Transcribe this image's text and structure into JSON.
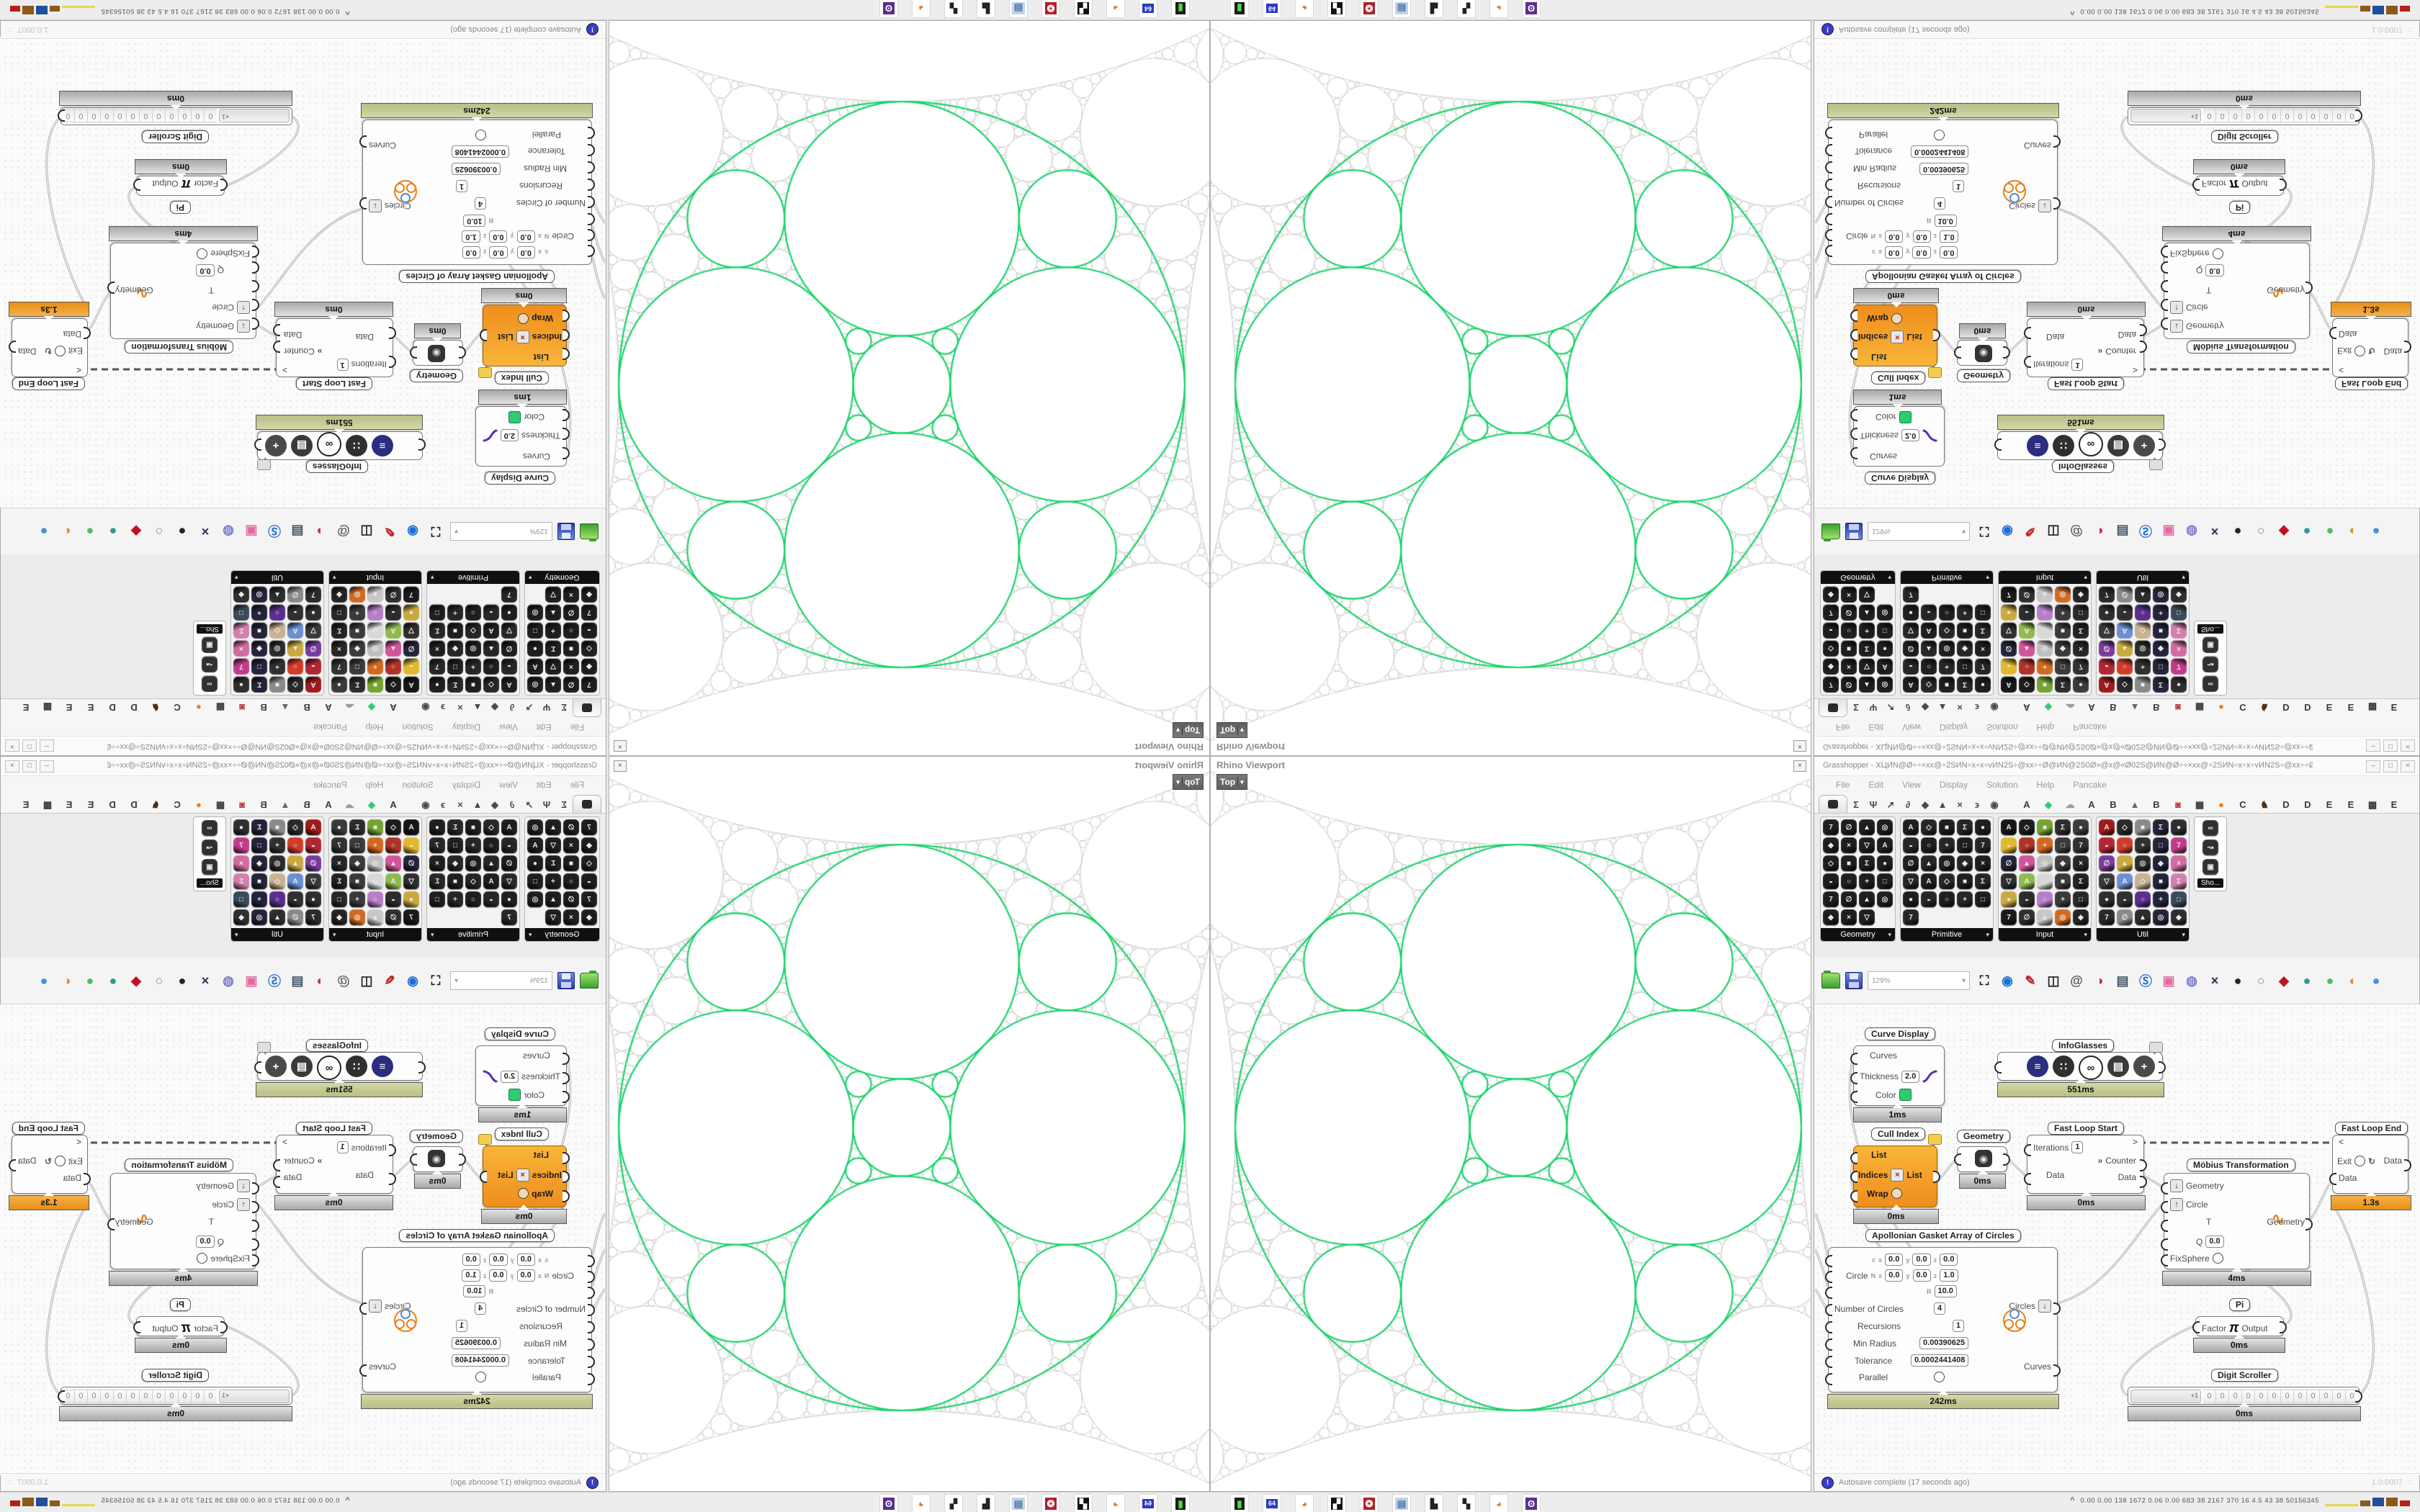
{
  "viewport": {
    "title": "Rhino Viewport",
    "view_tab": "Top",
    "view_tab_caret": "▾",
    "close": "×"
  },
  "gh": {
    "title": "Grasshopper - ХЦИN@Ø÷÷×xx@÷2SИN÷x÷x÷vИN2S÷@xx÷÷Ø@ИN@2S0Ø»@x@«Ø02S@ИN@Ø÷÷×xx@÷2SИN÷x÷x÷vИN2S÷@xx÷÷Ø@ИN*",
    "buttons": {
      "min": "–",
      "max": "□",
      "close": "×"
    },
    "menu": [
      "File",
      "Edit",
      "View",
      "Display",
      "Solution",
      "Help",
      "Pancake"
    ],
    "main_tabs": [
      "Σ",
      "Ψ",
      "↗",
      "∂",
      "◆",
      "▲",
      "×",
      "϶",
      "◉"
    ],
    "plugin_tabs": [
      {
        "label": "A",
        "color": "#3a3a3a"
      },
      {
        "label": "◆",
        "color": "#2ecc71"
      },
      {
        "label": "☁",
        "color": "#9a9a9a"
      },
      {
        "label": "A",
        "color": "#3a3a3a"
      },
      {
        "label": "B",
        "color": "#3a3a3a"
      },
      {
        "label": "▲",
        "color": "#666666"
      },
      {
        "label": "B",
        "color": "#3a3a3a"
      },
      {
        "label": "◙",
        "color": "#b03333"
      },
      {
        "label": "▦",
        "color": "#3a3a3a"
      },
      {
        "label": "●",
        "color": "#e8821e"
      },
      {
        "label": "C",
        "color": "#3a3a3a"
      },
      {
        "label": "♞",
        "color": "#4a2f1d"
      },
      {
        "label": "D",
        "color": "#3a3a3a"
      },
      {
        "label": "D",
        "color": "#3a3a3a"
      },
      {
        "label": "E",
        "color": "#3a3a3a"
      },
      {
        "label": "E",
        "color": "#3a3a3a"
      },
      {
        "label": "▩",
        "color": "#3a3a3a"
      },
      {
        "label": "E",
        "color": "#3a3a3a"
      }
    ],
    "palette_panels": [
      {
        "label": "Geometry",
        "caret": "▾",
        "cols": 4,
        "count": 23,
        "colors": [
          "#1e1e1e"
        ]
      },
      {
        "label": "Primitive",
        "caret": "▾",
        "cols": 5,
        "count": 26,
        "colors": [
          "#1e1e1e",
          "#262626"
        ]
      },
      {
        "label": "Input",
        "caret": "▾",
        "cols": 5,
        "count": 30,
        "colors": [
          "#161616",
          "#1d1d1d",
          "#74a32e",
          "#2c2c2c",
          "#3a3a3a",
          "#e0b92e",
          "#b03226",
          "#d2691e",
          "#3a3a3a",
          "#303030",
          "#23233a",
          "#d2549a",
          "#bfbfbf",
          "#3a3a3a",
          "#262626",
          "#2f2f2f",
          "#8fba4e",
          "#d8d8d8",
          "#3a3a3a",
          "#222222",
          "#caa93e",
          "#2c2c2c",
          "#b87fc9",
          "#3a3a3a",
          "#282828",
          "#1a1a1a",
          "#2e2e2e",
          "#c8c8c8",
          "#d2691e",
          "#242424"
        ]
      },
      {
        "label": "Util",
        "caret": "▾",
        "cols": 5,
        "count": 30,
        "colors": [
          "#9e1b1b",
          "#2a2a2a",
          "#8a8a8a",
          "#23233a",
          "#2e2e2e",
          "#b02633",
          "#d23b2a",
          "#303030",
          "#23233a",
          "#c23b8a",
          "#7a3b9e",
          "#caa93e",
          "#2c2c2c",
          "#23233a",
          "#d26ba0",
          "#3a3a3a",
          "#6a8fd2",
          "#c8b290",
          "#23233a",
          "#d27fb0",
          "#2e2e2e",
          "#303030",
          "#5b2d8e",
          "#23233a",
          "#3a4a5a",
          "#2a2a2a",
          "#8a8a8a",
          "#2c2c2c",
          "#23233a",
          "#2e2e2e"
        ]
      }
    ],
    "sho_panel": {
      "tooltip": "Sho...",
      "icons": [
        "∞",
        "↝",
        "▣"
      ]
    },
    "toolbar": {
      "zoom": "129%",
      "caret": "▾",
      "icons": [
        {
          "name": "focus-extents-icon",
          "glyph": "⛶",
          "color": "#222222"
        },
        {
          "name": "eye-icon",
          "glyph": "◉",
          "color": "#1a6fd4"
        },
        {
          "name": "brush-icon",
          "glyph": "✎",
          "color": "#c22222"
        },
        {
          "name": "bake-icon",
          "glyph": "◫",
          "color": "#222222"
        },
        {
          "name": "at-icon",
          "glyph": "@",
          "color": "#555555"
        },
        {
          "name": "gha-icon",
          "glyph": "◑",
          "color": "#c23344"
        },
        {
          "name": "document-icon",
          "glyph": "▤",
          "color": "#445566"
        },
        {
          "name": "search-icon",
          "glyph": "Ⓢ",
          "color": "#2a6fd4"
        },
        {
          "name": "package-icon",
          "glyph": "▣",
          "color": "#e368a0"
        },
        {
          "name": "balloon-icon",
          "glyph": "◍",
          "color": "#7a7ad0"
        },
        {
          "name": "jump-wires-icon",
          "glyph": "×",
          "color": "#333355"
        },
        {
          "name": "dark-sphere-icon",
          "glyph": "●",
          "color": "#222222"
        },
        {
          "name": "wire-sphere-icon",
          "glyph": "○",
          "color": "#888888"
        },
        {
          "name": "red-gem-icon",
          "glyph": "◆",
          "color": "#c21122"
        },
        {
          "name": "teal-ball-icon",
          "glyph": "●",
          "color": "#2a9d8f"
        },
        {
          "name": "green-ball-icon",
          "glyph": "●",
          "color": "#5cb85c"
        },
        {
          "name": "orange-ball-icon",
          "glyph": "◐",
          "color": "#e8862a"
        },
        {
          "name": "blue-ball-icon",
          "glyph": "●",
          "color": "#4a90d9"
        }
      ]
    },
    "status": {
      "autosave": "Autosave complete (17 seconds ago)",
      "badge": "!",
      "version": "1.0.0007",
      "grip": "∷"
    },
    "nodes": {
      "curve_display": {
        "label": "Curve Display",
        "curves": "Curves",
        "thickness": "Thickness",
        "thickness_value": "2.0",
        "color": "Color",
        "time": "1ms"
      },
      "infoglasses": {
        "label": "InfoGlasses",
        "time": "551ms",
        "buttons": [
          {
            "name": "profiler-icon",
            "glyph": "≡",
            "bg": "#2b2e7e",
            "fg": "#ffffff"
          },
          {
            "name": "grid-icon",
            "glyph": "∷",
            "bg": "#2f2f2f",
            "fg": "#ffffff"
          },
          {
            "name": "goggles-icon",
            "glyph": "∞",
            "bg": "#ffffff",
            "fg": "#222222"
          },
          {
            "name": "drawer-icon",
            "glyph": "▤",
            "bg": "#3a3a3a",
            "fg": "#ffffff"
          },
          {
            "name": "puzzle-icon",
            "glyph": "+",
            "bg": "#4a4a4a",
            "fg": "#ffffff"
          }
        ]
      },
      "cull_index": {
        "label": "Cull Index",
        "list_in": "List",
        "indices": "Indices",
        "wrap": "Wrap",
        "list_out": "List",
        "icon_x": "×",
        "time": "0ms"
      },
      "geometry": {
        "label": "Geometry",
        "icon": "◉",
        "time": "0ms"
      },
      "fast_loop_start": {
        "label": "Fast Loop Start",
        "iterations": "Iterations",
        "iterations_value": "1",
        "data_in": "Data",
        "gt": ">",
        "counter": "Counter",
        "counter_icon": "»",
        "data_out": "Data",
        "time": "0ms"
      },
      "mobius": {
        "label": "Möbius Transformation",
        "geometry_in": "Geometry",
        "down": "↓",
        "circle": "Circle",
        "up": "↑",
        "t": "T",
        "q": "Q",
        "q_value": "0.0",
        "fixsphere": "FixSphere",
        "geometry_out": "Geometry",
        "time": "4ms"
      },
      "fast_loop_end": {
        "label": "Fast Loop End",
        "lt": "<",
        "exit": "Exit",
        "loop_icon": "↻",
        "data_out": "Data",
        "data_in": "Data",
        "time": "1.3s"
      },
      "pi": {
        "label": "Pi",
        "factor": "Factor",
        "glyph": "π",
        "output": "Output",
        "time": "0ms"
      },
      "apollonian": {
        "label": "Apollonian Gasket Array of Circles",
        "c": "c",
        "x": "x",
        "y": "y",
        "z": "z",
        "circle": "Circle",
        "n": "N",
        "r": "R",
        "c_x": "0.0",
        "c_y": "0.0",
        "c_z": "0.0",
        "n_x": "0.0",
        "n_y": "0.0",
        "n_z": "1.0",
        "r_value": "10.0",
        "number_of_circles": "Number of Circles",
        "number_of_circles_value": "4",
        "recursions": "Recursions",
        "recursions_value": "1",
        "min_radius": "Min Radius",
        "min_radius_value": "0.00390625",
        "tolerance": "Tolerance",
        "tolerance_value": "0.0002441408",
        "parallel": "Parallel",
        "circles_out": "Circles",
        "down": "↓",
        "curves_out": "Curves",
        "time": "242ms"
      },
      "digit_scroller": {
        "label": "Digit Scroller",
        "plus": "+1",
        "digits": "000000000000",
        "time": "0ms"
      }
    }
  },
  "taskbar": {
    "icons": [
      {
        "name": "device-icon",
        "bg": "#1c1c1c",
        "fg": "#4ade4a",
        "glyph": "▮"
      },
      {
        "name": "floppy64-icon",
        "bg": "#2b3bc4",
        "fg": "#ffffff",
        "glyph": "64"
      },
      {
        "name": "firefox-icon",
        "bg": "#ffffff",
        "fg": "#e87722",
        "glyph": "◕"
      },
      {
        "name": "inkscape-icon",
        "bg": "#111111",
        "fg": "#ffffff",
        "glyph": "▞"
      },
      {
        "name": "redcard-icon",
        "bg": "#b3202a",
        "fg": "#ffffff",
        "glyph": "❂"
      },
      {
        "name": "notepad-icon",
        "bg": "#bcd4e6",
        "fg": "#5577aa",
        "glyph": "▤"
      },
      {
        "name": "maze1-icon",
        "bg": "#ffffff",
        "fg": "#222222",
        "glyph": "▙"
      },
      {
        "name": "maze2-icon",
        "bg": "#ffffff",
        "fg": "#222222",
        "glyph": "▚"
      },
      {
        "name": "firefox2-icon",
        "bg": "#ffffff",
        "fg": "#e87722",
        "glyph": "◕"
      },
      {
        "name": "owl-icon",
        "bg": "#5b2d8e",
        "fg": "#ffffff",
        "glyph": "ʘ"
      }
    ],
    "tray_caret": "^",
    "tray_text": "0.00 0.00  138  1672 0.06 0.00  683   38   2167 370   16   4.5   43   38   50156345",
    "chips": [
      {
        "color": "#e6d84a",
        "w": 46,
        "h": 3
      },
      {
        "color": "#8a5a18",
        "w": 14,
        "h": 8
      },
      {
        "color": "#1f4e9c",
        "w": 16,
        "h": 12
      },
      {
        "color": "#8a5a18",
        "w": 16,
        "h": 12
      },
      {
        "color": "#b32015",
        "w": 14,
        "h": 8
      }
    ]
  },
  "gasket": {
    "green": "#14d467",
    "gray": "#c6c6c6",
    "number_of_circles": 4,
    "outer_radius_model": 10,
    "recursions_green": 1
  }
}
